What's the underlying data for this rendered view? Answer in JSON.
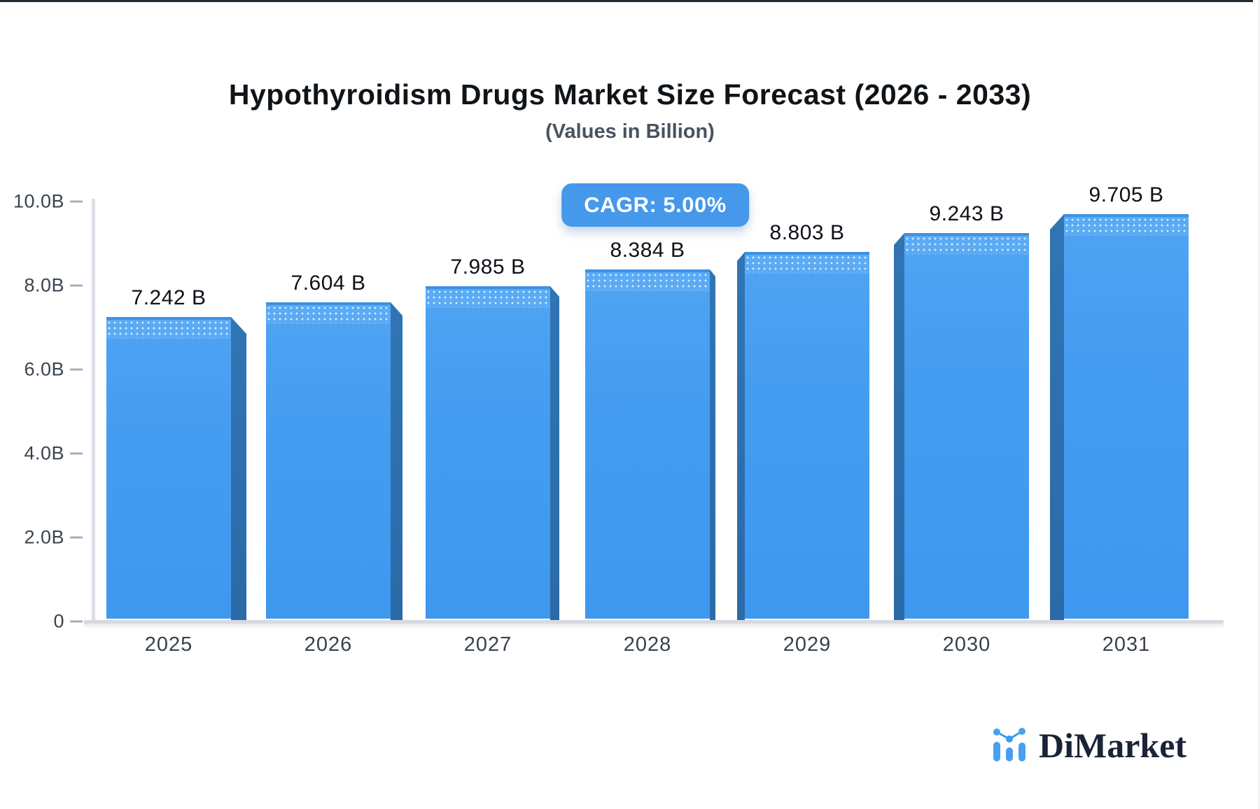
{
  "header": {
    "title": "Hypothyroidism Drugs Market Size Forecast (2026 - 2033)",
    "subtitle": "(Values in Billion)"
  },
  "cagr": {
    "label": "CAGR: 5.00%",
    "badge_color": "#4598ea"
  },
  "chart_data": {
    "type": "bar",
    "title": "Hypothyroidism Drugs Market Size Forecast (2026 - 2033)",
    "subtitle": "(Values in Billion)",
    "categories": [
      "2025",
      "2026",
      "2027",
      "2028",
      "2029",
      "2030",
      "2031"
    ],
    "values": [
      7.242,
      7.604,
      7.985,
      8.384,
      8.803,
      9.243,
      9.705
    ],
    "value_labels": [
      "7.242 B",
      "7.604 B",
      "7.985 B",
      "8.384 B",
      "8.803 B",
      "9.243 B",
      "9.705 B"
    ],
    "y_ticks": [
      {
        "value": 0,
        "label": "0"
      },
      {
        "value": 2,
        "label": "2.0B"
      },
      {
        "value": 4,
        "label": "4.0B"
      },
      {
        "value": 6,
        "label": "6.0B"
      },
      {
        "value": 8,
        "label": "8.0B"
      },
      {
        "value": 10,
        "label": "10.0B"
      }
    ],
    "ylim": [
      0,
      10
    ],
    "unit": "Billion",
    "legend": null,
    "grid": "off",
    "bar_color": "#459df1",
    "bar_side_color": "#2f73b2"
  },
  "logo": {
    "text": "DiMarket",
    "icon": "bar-chart-logo-icon",
    "text_color": "#1a2337",
    "icon_color": "#47a0f2"
  }
}
